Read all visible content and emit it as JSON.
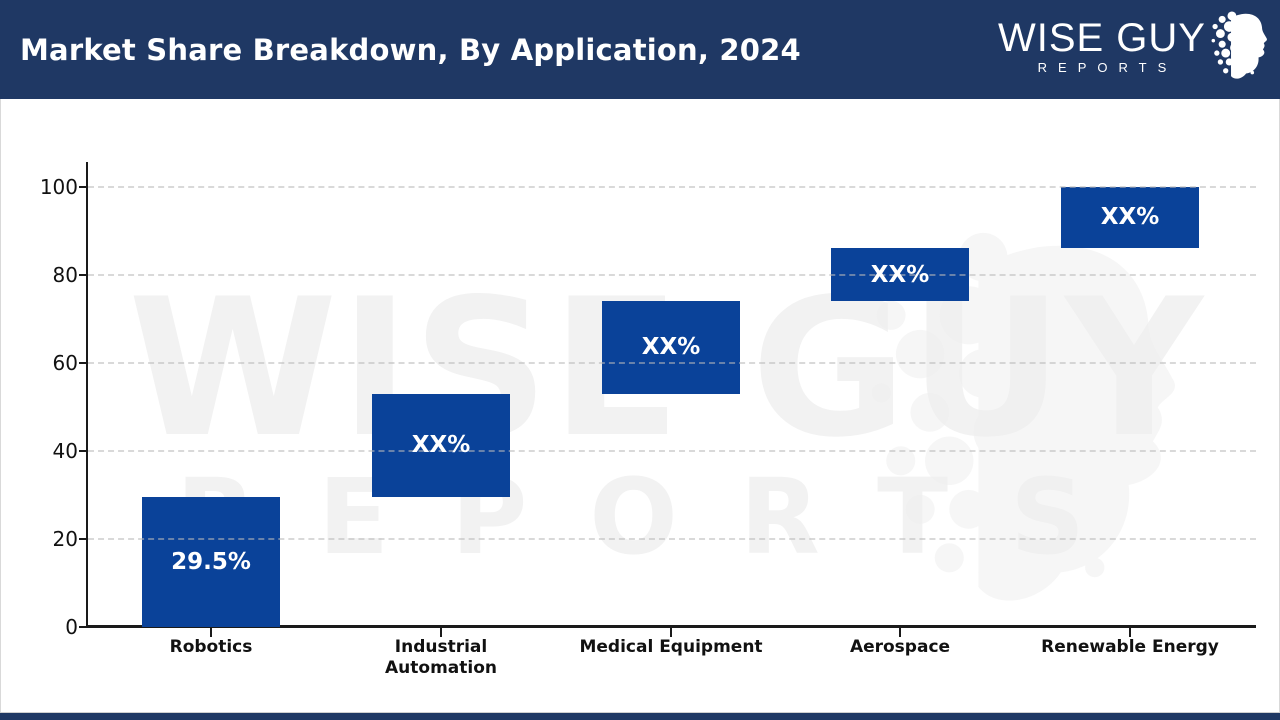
{
  "header": {
    "title": "Market Share Breakdown, By Application, 2024",
    "logo": {
      "line1": "WISE GUY",
      "line2": "REPORTS"
    }
  },
  "watermark": {
    "line1": "WISE GUY",
    "line2": "REPORTS"
  },
  "colors": {
    "header_bg": "#1f3864",
    "footer_bg": "#1f3864",
    "bar": "#0a4299",
    "bar_label": "#ffffff",
    "grid": "#c9c9c9",
    "axis": "#1a1a1a",
    "watermark": "#f2f2f2"
  },
  "chart_data": {
    "type": "bar",
    "variant": "waterfall",
    "title": "Market Share Breakdown, By Application, 2024",
    "xlabel": "",
    "ylabel": "",
    "categories": [
      "Robotics",
      "Industrial Automation",
      "Medical Equipment",
      "Aerospace",
      "Renewable Energy"
    ],
    "bars": [
      {
        "category": "Robotics",
        "lines": [
          "Robotics"
        ],
        "base": 0,
        "top": 29.5,
        "label": "29.5%"
      },
      {
        "category": "Industrial Automation",
        "lines": [
          "Industrial",
          "Automation"
        ],
        "base": 29.5,
        "top": 53,
        "label": "XX%"
      },
      {
        "category": "Medical Equipment",
        "lines": [
          "Medical Equipment"
        ],
        "base": 53,
        "top": 74,
        "label": "XX%"
      },
      {
        "category": "Aerospace",
        "lines": [
          "Aerospace"
        ],
        "base": 74,
        "top": 86,
        "label": "XX%"
      },
      {
        "category": "Renewable Energy",
        "lines": [
          "Renewable Energy"
        ],
        "base": 86,
        "top": 100,
        "label": "XX%"
      }
    ],
    "yticks": [
      0,
      20,
      40,
      60,
      80,
      100
    ],
    "ylim": [
      0,
      105.6
    ],
    "grid": "horizontal-dashed",
    "legend": "none",
    "bar_color": "#0a4299",
    "value_label_color": "#ffffff"
  }
}
